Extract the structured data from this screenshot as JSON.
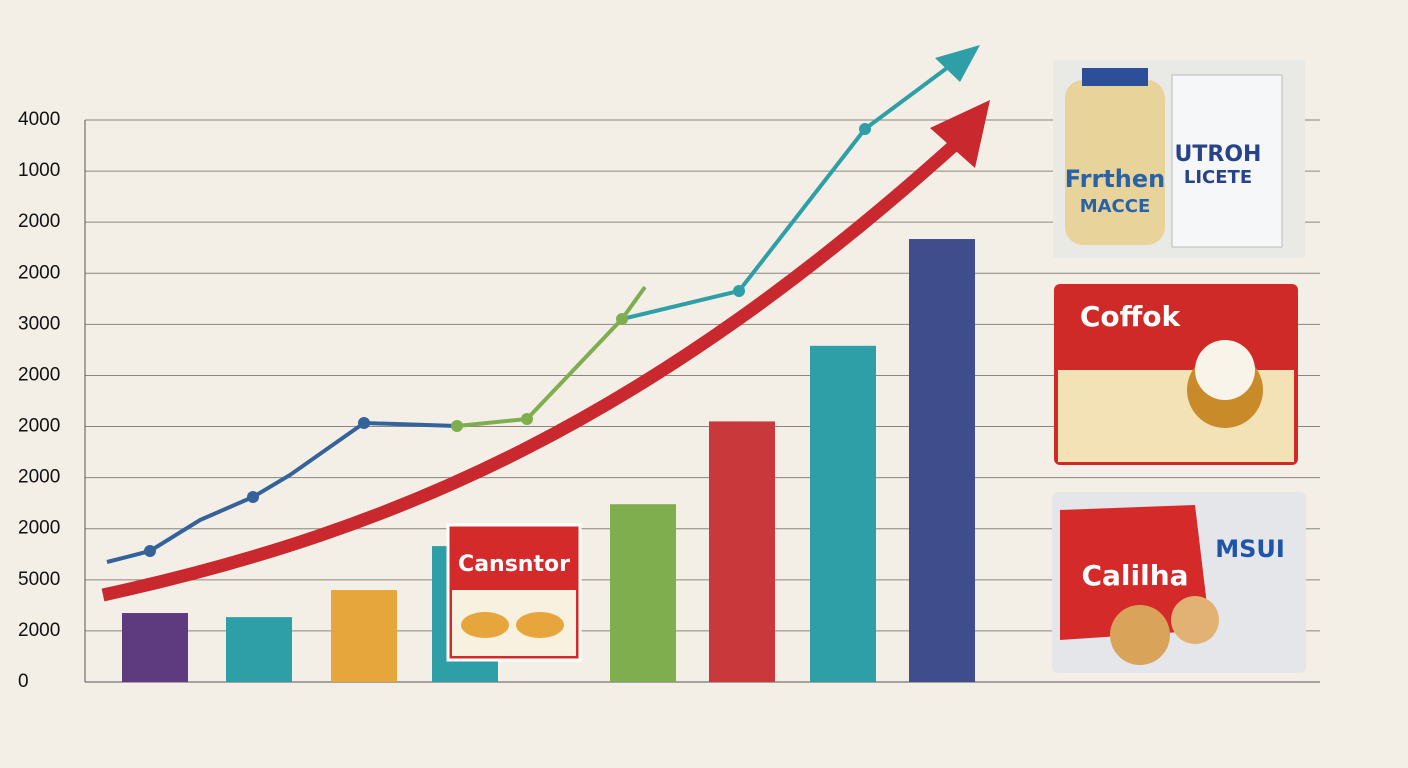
{
  "chart_data": {
    "type": "bar",
    "categories": [
      null,
      null,
      null,
      null,
      null,
      null,
      null,
      null
    ],
    "values": [
      1.35,
      1.27,
      1.8,
      2.66,
      3.48,
      5.1,
      6.58,
      8.67
    ],
    "colors": [
      "#5e3b7e",
      "#2e9fa6",
      "#e7a63b",
      "#2e9fa6",
      "#7fae4f",
      "#c9383a",
      "#2e9fa6",
      "#3f4d8c"
    ],
    "ylim": [
      0,
      11
    ],
    "yticks": [
      {
        "value": 0,
        "label": "0"
      },
      {
        "value": 1,
        "label": "2000"
      },
      {
        "value": 2,
        "label": "5000"
      },
      {
        "value": 3,
        "label": "2000"
      },
      {
        "value": 4,
        "label": "2000"
      },
      {
        "value": 5,
        "label": "2000"
      },
      {
        "value": 6,
        "label": "2000"
      },
      {
        "value": 7,
        "label": "3000"
      },
      {
        "value": 8,
        "label": "2000"
      },
      {
        "value": 9,
        "label": "2000"
      },
      {
        "value": 10,
        "label": "1000"
      },
      {
        "value": 11,
        "label": "4000"
      }
    ],
    "grid": true
  },
  "products": [
    {
      "brand": "Cansntor"
    },
    {
      "brand": "Frrthen",
      "sub": "MACCE"
    },
    {
      "brand": "UTROH",
      "sub": "LICETE"
    },
    {
      "brand": "Coffok"
    },
    {
      "brand": "Calilha",
      "sub": "MSUI"
    }
  ]
}
